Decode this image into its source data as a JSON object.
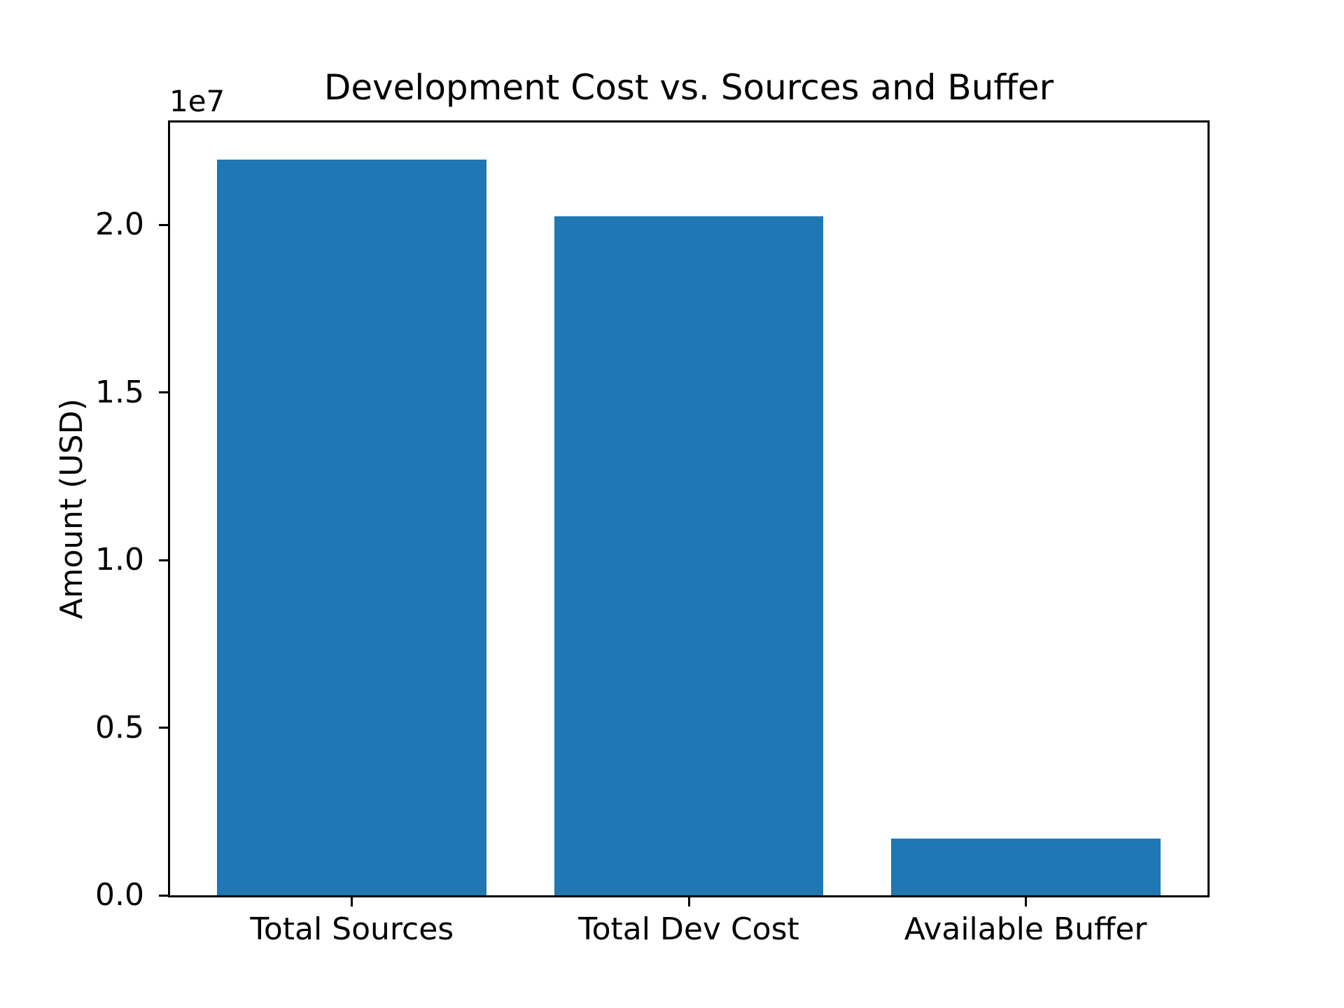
{
  "chart_data": {
    "type": "bar",
    "title": "Development Cost vs. Sources and Buffer",
    "categories": [
      "Total Sources",
      "Total Dev Cost",
      "Available Buffer"
    ],
    "values": [
      21950000,
      20250000,
      1700000
    ],
    "xlabel": "",
    "ylabel": "Amount (USD)",
    "ylim": [
      0,
      23050000
    ],
    "yticks": {
      "values": [
        0,
        5000000,
        10000000,
        15000000,
        20000000
      ],
      "labels": [
        "0.0",
        "0.5",
        "1.0",
        "1.5",
        "2.0"
      ]
    },
    "offset_label": "1e7",
    "bar_color": "#1f77b4",
    "bar_width_fraction": 0.8,
    "grid": false,
    "legend_position": "none"
  },
  "colors": {
    "bar": "#1f77b4",
    "text": "#000000",
    "spine": "#000000",
    "background": "#ffffff"
  }
}
